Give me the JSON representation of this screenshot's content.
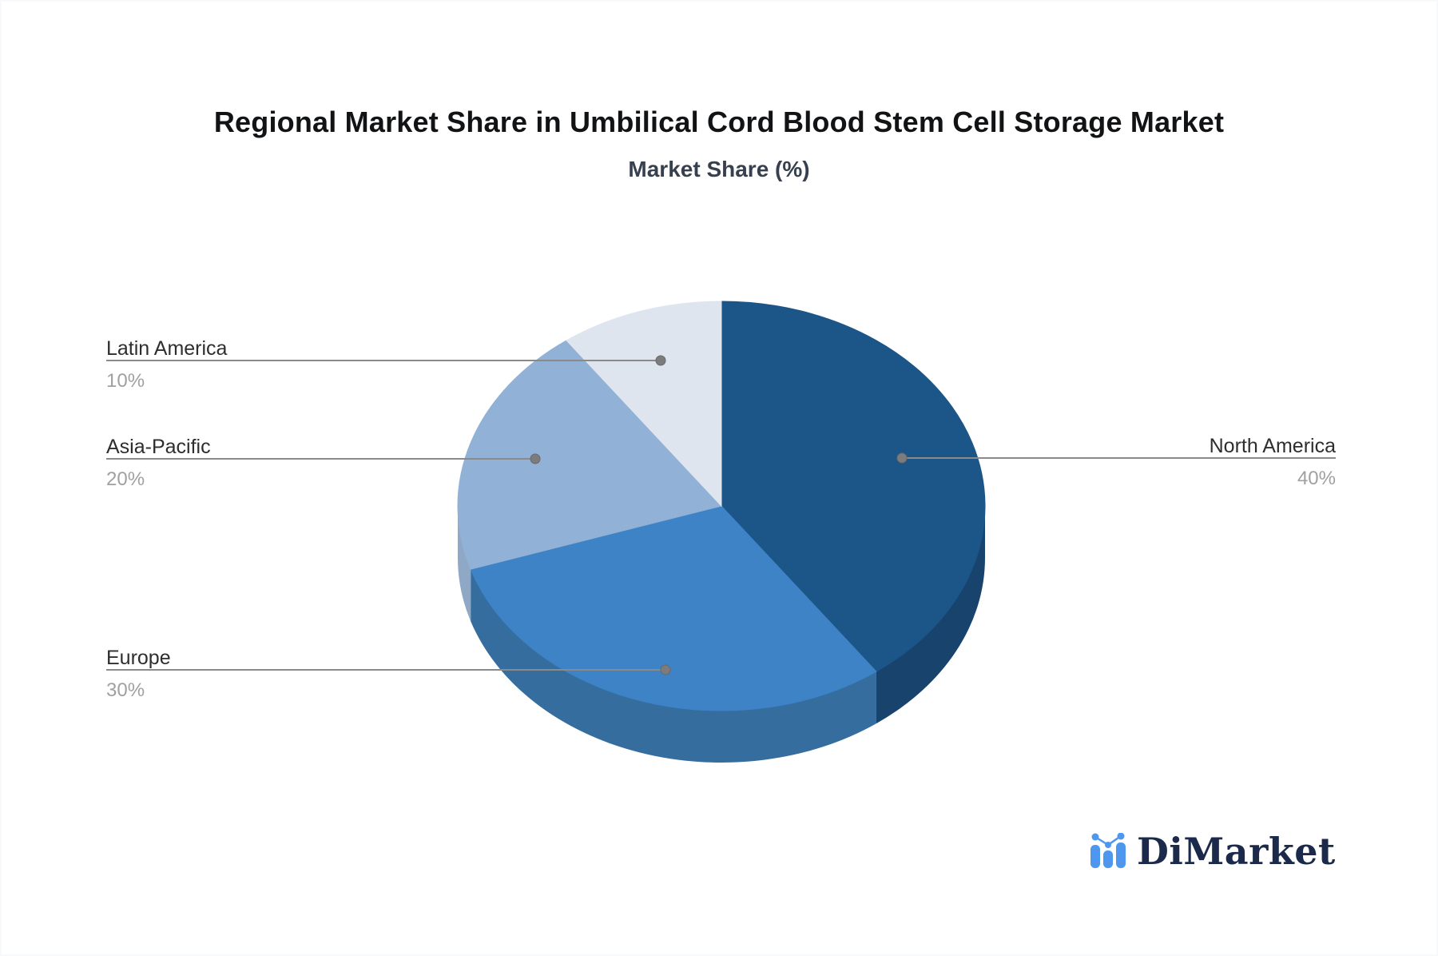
{
  "page": {
    "background": "#ffffff"
  },
  "header": {
    "title": "Regional Market Share in Umbilical Cord Blood Stem Cell Storage Market",
    "subtitle": "Market Share (%)"
  },
  "chart_data": {
    "type": "pie",
    "style": "3d",
    "title": "Regional Market Share in Umbilical Cord Blood Stem Cell Storage Market",
    "subtitle": "Market Share (%)",
    "unit": "%",
    "total": 100,
    "start_angle_deg": 0,
    "direction": "clockwise",
    "legend": "none",
    "leader_line_color": "#8a8a8a",
    "leader_dot_color": "#7c7c7c",
    "label_color": "#2e2e2e",
    "value_color": "#a0a0a0",
    "slices": [
      {
        "label": "North America",
        "value": 40,
        "value_label": "40%",
        "color": "#1c5587",
        "side_color": "#17436d",
        "callout_side": "right"
      },
      {
        "label": "Europe",
        "value": 30,
        "value_label": "30%",
        "color": "#3d83c6",
        "side_color": "#356d9f",
        "callout_side": "left"
      },
      {
        "label": "Asia-Pacific",
        "value": 20,
        "value_label": "20%",
        "color": "#91b1d6",
        "side_color": "#8ea8c6",
        "callout_side": "left"
      },
      {
        "label": "Latin America",
        "value": 10,
        "value_label": "10%",
        "color": "#dfe5ee",
        "side_color": "#c9d2e0",
        "callout_side": "left"
      }
    ]
  },
  "footer": {
    "brand_name": "DiMarket",
    "brand_text_color": "#1b2a4a",
    "brand_icon_color": "#4e97ee",
    "brand_icon": "bar-chart-logo-icon"
  }
}
